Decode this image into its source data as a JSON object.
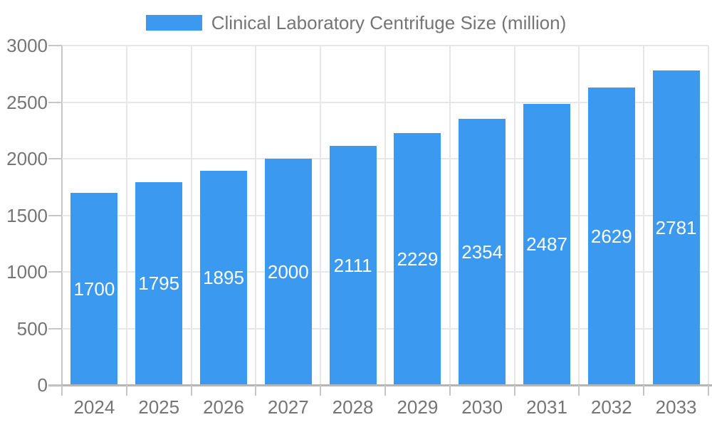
{
  "chart_data": {
    "type": "bar",
    "title": "Clinical Laboratory Centrifuge Size (million)",
    "categories": [
      "2024",
      "2025",
      "2026",
      "2027",
      "2028",
      "2029",
      "2030",
      "2031",
      "2032",
      "2033"
    ],
    "values": [
      1700,
      1795,
      1895,
      2000,
      2111,
      2229,
      2354,
      2487,
      2629,
      2781
    ],
    "value_labels": [
      "1700",
      "1795",
      "1895",
      "2000",
      "2111",
      "2229",
      "2354",
      "2487",
      "2629",
      "2781"
    ],
    "xlabel": "",
    "ylabel": "",
    "ylim": [
      0,
      3000
    ],
    "yticks": [
      "0",
      "500",
      "1000",
      "1500",
      "2000",
      "2500",
      "3000"
    ],
    "grid": "on",
    "legend_position": "top",
    "colors": {
      "bar": "#3b9af0",
      "value_label": "#ffffff",
      "axis_text": "#757575",
      "gridline": "#e7e7e7",
      "tick": "#c6c6c6",
      "y_axis_line": "#c6c6c6",
      "x_axis_line": "#b5b5b5",
      "background": "#ffffff"
    }
  }
}
